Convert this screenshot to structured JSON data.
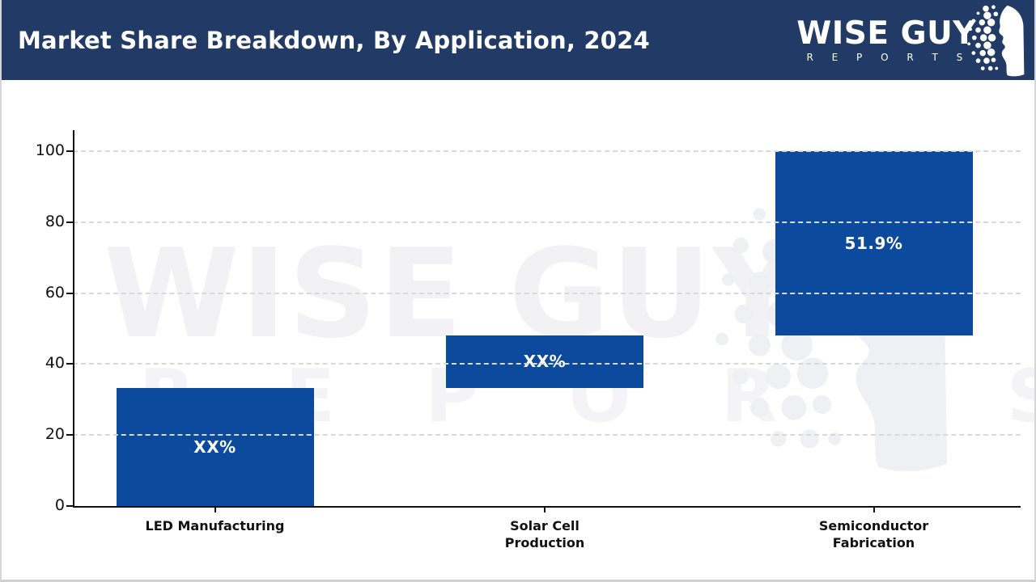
{
  "header": {
    "title": "Market Share Breakdown, By Application, 2024",
    "logo": {
      "name": "WISE GUY",
      "subname": "R E P O R T S"
    }
  },
  "watermark": {
    "line1": "WISE GUY",
    "line2": "R E P O R T S"
  },
  "chart_data": {
    "type": "bar",
    "subtype": "floating_segment_breakdown",
    "title": "Market Share Breakdown, By Application, 2024",
    "categories": [
      "LED Manufacturing",
      "Solar Cell\nProduction",
      "Semiconductor\nFabrication"
    ],
    "bars": [
      {
        "category": "LED Manufacturing",
        "start": 0,
        "end": 33.3,
        "label": "XX%"
      },
      {
        "category": "Solar Cell Production",
        "start": 33.3,
        "end": 48.1,
        "label": "XX%"
      },
      {
        "category": "Semiconductor Fabrication",
        "start": 48.1,
        "end": 100,
        "label": "51.9%"
      }
    ],
    "segment_values": [
      33.3,
      14.8,
      51.9
    ],
    "xlabel": "",
    "ylabel": "",
    "yticks": [
      0,
      20,
      40,
      60,
      80,
      100
    ],
    "ylim": [
      0,
      106
    ],
    "grid": {
      "axis": "y",
      "style": "dashed",
      "color": "#d9d9d9"
    },
    "legend": "none",
    "bar_color": "#0b4a9c",
    "bar_label_color": "#ffffff",
    "axis_color": "#111111"
  }
}
